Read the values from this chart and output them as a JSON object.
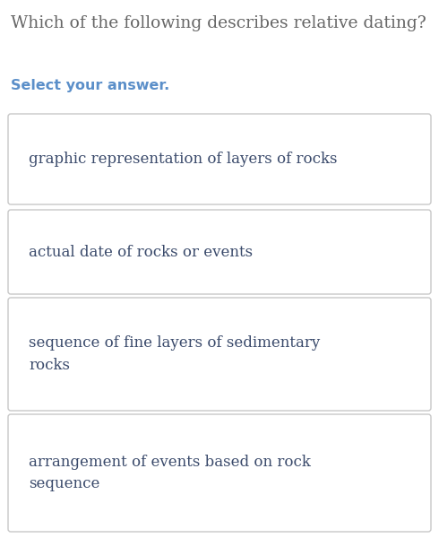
{
  "title": "Which of the following describes relative dating?",
  "subtitle": "Select your answer.",
  "subtitle_color": "#5b8fc9",
  "title_color": "#666666",
  "answer_text_color": "#3a4a6b",
  "background_color": "#ffffff",
  "box_bg_color": "#ffffff",
  "box_border_color": "#c8c8c8",
  "options": [
    "graphic representation of layers of rocks",
    "actual date of rocks or events",
    "sequence of fine layers of sedimentary\nrocks",
    "arrangement of events based on rock\nsequence"
  ],
  "title_fontsize": 13.5,
  "subtitle_fontsize": 11.5,
  "option_fontsize": 12.0,
  "fig_width": 4.9,
  "fig_height": 6.0
}
